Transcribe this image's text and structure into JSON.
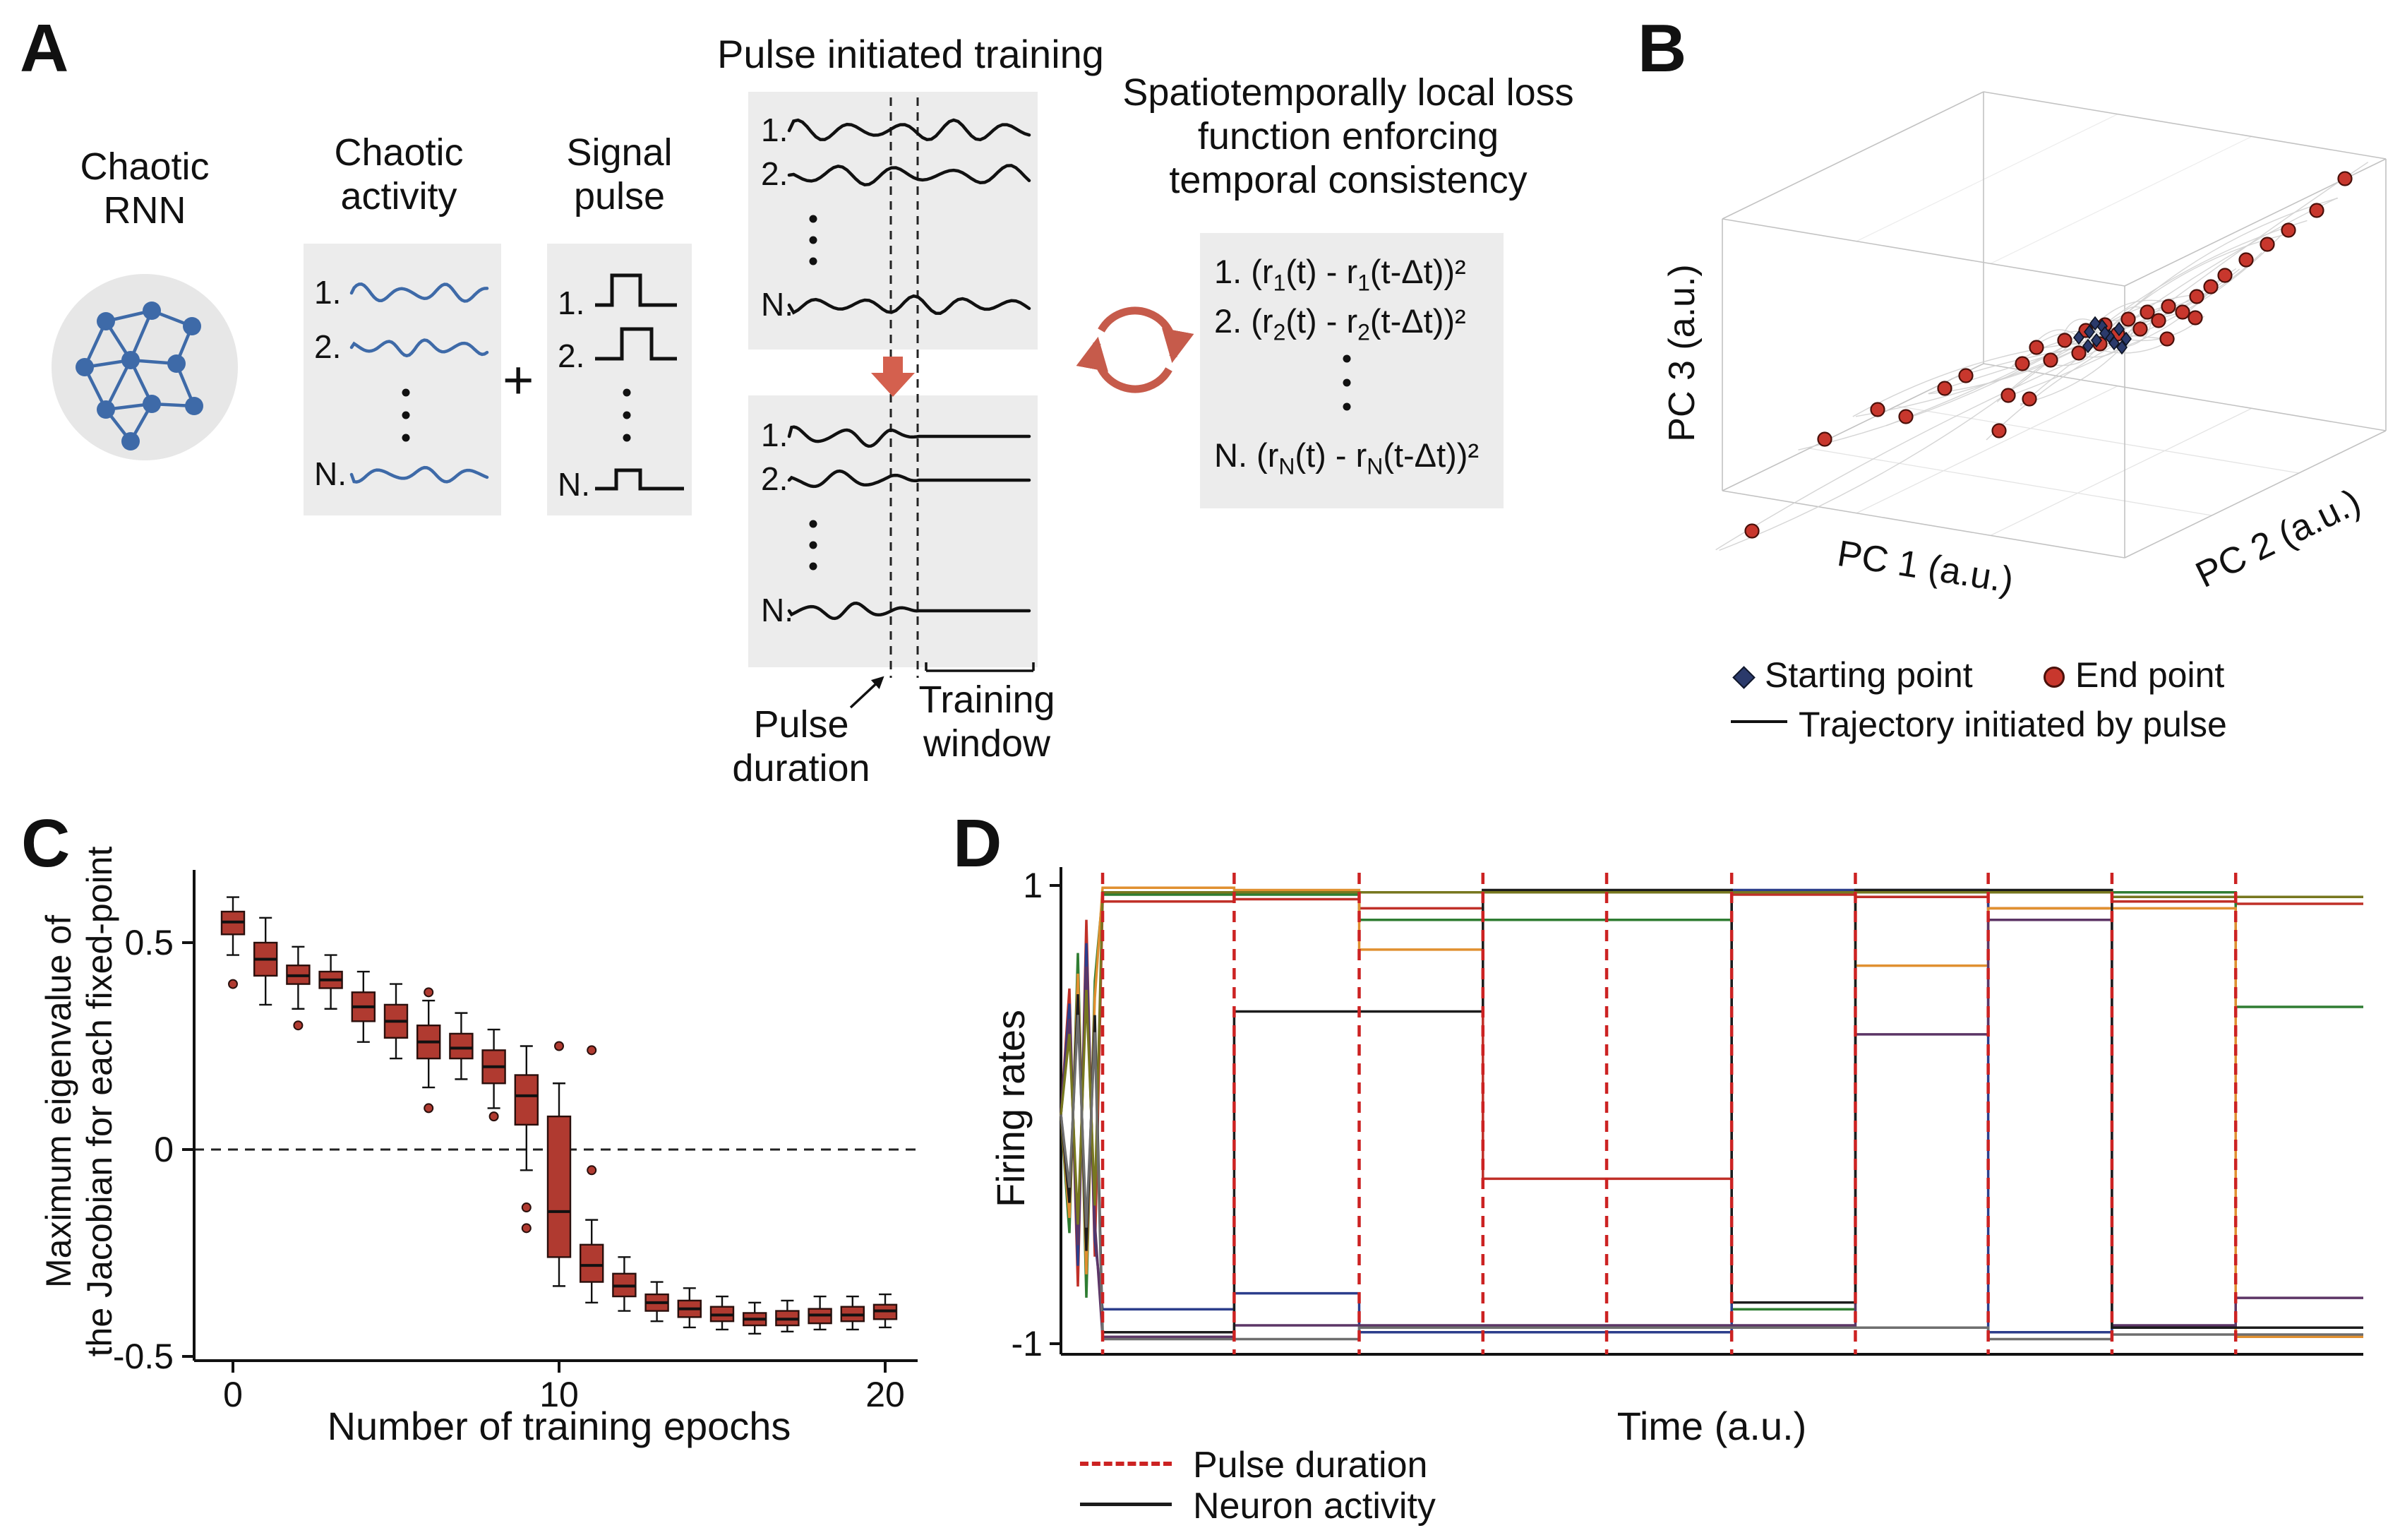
{
  "colors": {
    "panel_box_gray": "#ececec",
    "node_blue": "#3e6aa8",
    "arrow_red": "#d4604e",
    "cycle_red": "#c65b4b",
    "box_red": "#b03a30",
    "pulse_red": "#cc2222",
    "endpoint_red": "#c8372d",
    "start_navy": "#2b3a6b"
  },
  "panel_a": {
    "label": "A",
    "chaotic_rnn": "Chaotic\nRNN",
    "chaotic_activity": "Chaotic\nactivity",
    "plus": "+",
    "signal_pulse": "Signal\npulse",
    "pulse_training_title": "Pulse initiated training",
    "row_labels": [
      "1.",
      "2.",
      "N."
    ],
    "pulse_duration": "Pulse\nduration",
    "training_window": "Training\nwindow",
    "loss_title": "Spatiotemporally local loss\nfunction enforcing\ntemporal consistency",
    "equations": [
      "1. (r<sub>1</sub>(t) - r<sub>1</sub>(t-Δt))²",
      "2. (r<sub>2</sub>(t) - r<sub>2</sub>(t-Δt))²",
      "N. (r<sub>N</sub>(t) - r<sub>N</sub>(t-Δt))²"
    ]
  },
  "panel_b": {
    "label": "B"
  },
  "panel_c": {
    "label": "C"
  },
  "panel_d": {
    "label": "D"
  },
  "chart_data": [
    {
      "type": "scatter3d",
      "axes": {
        "x": "PC 1 (a.u.)",
        "y": "PC 2 (a.u.)",
        "z": "PC 3 (a.u.)"
      },
      "end_color": "#c8372d",
      "start_color": "#2b3a6b",
      "trajectory_color": "#d0d0d0",
      "end_points": [
        [
          112,
          642
        ],
        [
          215,
          512
        ],
        [
          290,
          470
        ],
        [
          330,
          480
        ],
        [
          385,
          440
        ],
        [
          415,
          422
        ],
        [
          475,
          450
        ],
        [
          495,
          405
        ],
        [
          515,
          382
        ],
        [
          535,
          400
        ],
        [
          555,
          372
        ],
        [
          575,
          390
        ],
        [
          585,
          358
        ],
        [
          605,
          377
        ],
        [
          612,
          350
        ],
        [
          630,
          363
        ],
        [
          645,
          342
        ],
        [
          662,
          356
        ],
        [
          672,
          332
        ],
        [
          688,
          344
        ],
        [
          702,
          324
        ],
        [
          722,
          332
        ],
        [
          742,
          310
        ],
        [
          762,
          296
        ],
        [
          782,
          280
        ],
        [
          812,
          258
        ],
        [
          842,
          236
        ],
        [
          872,
          216
        ],
        [
          912,
          188
        ],
        [
          952,
          143
        ],
        [
          505,
          455
        ],
        [
          462,
          500
        ],
        [
          700,
          370
        ],
        [
          740,
          340
        ]
      ],
      "start_points": [
        [
          575,
          368
        ],
        [
          590,
          360
        ],
        [
          600,
          372
        ],
        [
          608,
          352
        ],
        [
          618,
          366
        ],
        [
          625,
          376
        ],
        [
          632,
          356
        ],
        [
          642,
          370
        ],
        [
          588,
          380
        ],
        [
          612,
          362
        ],
        [
          598,
          348
        ],
        [
          636,
          382
        ]
      ],
      "legend": [
        {
          "marker": "diamond",
          "label": "Starting point"
        },
        {
          "marker": "circle",
          "label": "End point"
        },
        {
          "marker": "line",
          "label": "Trajectory initiated by pulse"
        }
      ]
    },
    {
      "type": "boxplot",
      "xlabel": "Number of training epochs",
      "ylabel": "Maximum eigenvalue of\nthe Jacobian for each fixed-point",
      "xticks": [
        0,
        10,
        20
      ],
      "yticks": [
        0.5,
        0,
        -0.5
      ],
      "ylim": [
        -0.51,
        0.675
      ],
      "zero_line": 0,
      "box_color": "#b03a30",
      "boxes": [
        {
          "epoch": 0,
          "lo": 0.47,
          "q1": 0.52,
          "med": 0.55,
          "q3": 0.575,
          "hi": 0.61,
          "outliers": [
            0.4
          ]
        },
        {
          "epoch": 1,
          "lo": 0.35,
          "q1": 0.42,
          "med": 0.46,
          "q3": 0.5,
          "hi": 0.56,
          "outliers": []
        },
        {
          "epoch": 2,
          "lo": 0.34,
          "q1": 0.4,
          "med": 0.42,
          "q3": 0.445,
          "hi": 0.49,
          "outliers": [
            0.3
          ]
        },
        {
          "epoch": 3,
          "lo": 0.34,
          "q1": 0.39,
          "med": 0.41,
          "q3": 0.43,
          "hi": 0.47,
          "outliers": []
        },
        {
          "epoch": 4,
          "lo": 0.26,
          "q1": 0.31,
          "med": 0.345,
          "q3": 0.38,
          "hi": 0.43,
          "outliers": []
        },
        {
          "epoch": 5,
          "lo": 0.22,
          "q1": 0.27,
          "med": 0.31,
          "q3": 0.35,
          "hi": 0.4,
          "outliers": []
        },
        {
          "epoch": 6,
          "lo": 0.15,
          "q1": 0.22,
          "med": 0.26,
          "q3": 0.3,
          "hi": 0.36,
          "outliers": [
            0.38,
            0.1
          ]
        },
        {
          "epoch": 7,
          "lo": 0.17,
          "q1": 0.22,
          "med": 0.245,
          "q3": 0.28,
          "hi": 0.33,
          "outliers": []
        },
        {
          "epoch": 8,
          "lo": 0.1,
          "q1": 0.16,
          "med": 0.2,
          "q3": 0.24,
          "hi": 0.29,
          "outliers": [
            0.08
          ]
        },
        {
          "epoch": 9,
          "lo": -0.05,
          "q1": 0.06,
          "med": 0.13,
          "q3": 0.18,
          "hi": 0.25,
          "outliers": [
            -0.14,
            -0.19
          ]
        },
        {
          "epoch": 10,
          "lo": -0.33,
          "q1": -0.26,
          "med": -0.15,
          "q3": 0.08,
          "hi": 0.16,
          "outliers": [
            0.25
          ]
        },
        {
          "epoch": 11,
          "lo": -0.37,
          "q1": -0.32,
          "med": -0.28,
          "q3": -0.23,
          "hi": -0.17,
          "outliers": [
            0.24,
            -0.05
          ]
        },
        {
          "epoch": 12,
          "lo": -0.39,
          "q1": -0.355,
          "med": -0.33,
          "q3": -0.3,
          "hi": -0.26,
          "outliers": []
        },
        {
          "epoch": 13,
          "lo": -0.415,
          "q1": -0.39,
          "med": -0.37,
          "q3": -0.35,
          "hi": -0.32,
          "outliers": []
        },
        {
          "epoch": 14,
          "lo": -0.43,
          "q1": -0.405,
          "med": -0.385,
          "q3": -0.365,
          "hi": -0.335,
          "outliers": []
        },
        {
          "epoch": 15,
          "lo": -0.435,
          "q1": -0.415,
          "med": -0.4,
          "q3": -0.38,
          "hi": -0.355,
          "outliers": []
        },
        {
          "epoch": 16,
          "lo": -0.445,
          "q1": -0.425,
          "med": -0.41,
          "q3": -0.395,
          "hi": -0.37,
          "outliers": []
        },
        {
          "epoch": 17,
          "lo": -0.44,
          "q1": -0.425,
          "med": -0.41,
          "q3": -0.39,
          "hi": -0.365,
          "outliers": []
        },
        {
          "epoch": 18,
          "lo": -0.435,
          "q1": -0.42,
          "med": -0.4,
          "q3": -0.385,
          "hi": -0.355,
          "outliers": []
        },
        {
          "epoch": 19,
          "lo": -0.435,
          "q1": -0.415,
          "med": -0.4,
          "q3": -0.38,
          "hi": -0.355,
          "outliers": []
        },
        {
          "epoch": 20,
          "lo": -0.43,
          "q1": -0.41,
          "med": -0.39,
          "q3": -0.375,
          "hi": -0.35,
          "outliers": []
        }
      ]
    },
    {
      "type": "line",
      "xlabel": "Time (a.u.)",
      "ylabel": "Firing rates",
      "yticks": [
        1,
        -1
      ],
      "ylim": [
        -1.05,
        1.08
      ],
      "pulse_color": "#cc2222",
      "pulse_times": [
        0.032,
        0.133,
        0.229,
        0.324,
        0.419,
        0.515,
        0.61,
        0.712,
        0.807,
        0.902
      ],
      "series": [
        {
          "color": "#c03028",
          "levels": [
            0,
            0.93,
            0.94,
            0.9,
            -0.28,
            -0.28,
            0.96,
            0.95,
            0.9,
            0.93,
            0.92
          ]
        },
        {
          "color": "#2f7d32",
          "levels": [
            0,
            0.96,
            0.96,
            0.85,
            0.85,
            0.85,
            -0.85,
            0.97,
            0.97,
            0.97,
            0.47
          ]
        },
        {
          "color": "#2c3e8c",
          "levels": [
            0,
            -0.85,
            -0.78,
            -0.95,
            -0.95,
            -0.95,
            0.98,
            0.98,
            -0.95,
            -0.93,
            -0.93
          ]
        },
        {
          "color": "#e09030",
          "levels": [
            0,
            0.99,
            0.98,
            0.72,
            0.97,
            0.97,
            0.97,
            0.65,
            0.9,
            0.9,
            -0.97
          ]
        },
        {
          "color": "#5c3566",
          "levels": [
            0,
            -0.97,
            -0.92,
            -0.92,
            -0.92,
            -0.92,
            -0.92,
            0.35,
            0.85,
            -0.92,
            -0.8
          ]
        },
        {
          "color": "#1c1c1c",
          "levels": [
            0,
            -0.95,
            0.45,
            0.45,
            0.98,
            0.98,
            -0.82,
            0.98,
            0.98,
            -0.93,
            -0.93
          ]
        },
        {
          "color": "#77771f",
          "levels": [
            0,
            0.97,
            0.97,
            0.97,
            0.97,
            0.97,
            0.97,
            0.97,
            0.97,
            0.95,
            0.95
          ]
        },
        {
          "color": "#6e6e6e",
          "levels": [
            0,
            -0.98,
            -0.98,
            -0.93,
            -0.93,
            -0.93,
            -0.93,
            -0.93,
            -0.98,
            -0.96,
            -0.96
          ]
        }
      ],
      "legend": [
        {
          "style": "dashed",
          "color": "#cc2222",
          "label": "Pulse duration"
        },
        {
          "style": "solid",
          "color": "#1c1c1c",
          "label": "Neuron activity"
        }
      ]
    }
  ]
}
